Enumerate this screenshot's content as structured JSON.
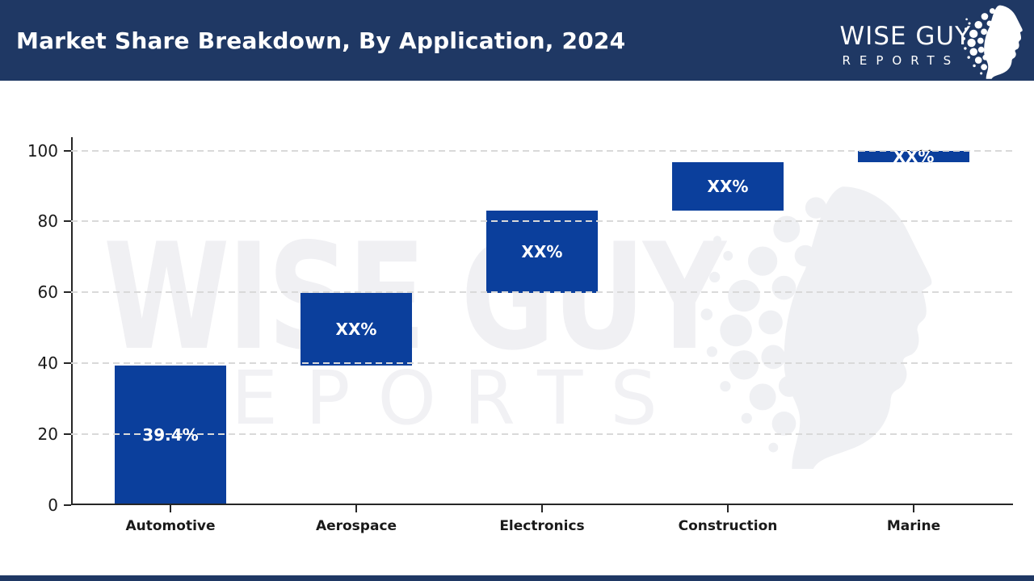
{
  "header": {
    "title": "Market Share Breakdown, By Application, 2024",
    "bg_color": "#1F3864",
    "logo": {
      "line1": "WISE GUY",
      "line2": "REPORTS"
    }
  },
  "watermark": {
    "line1": "WISE GUY",
    "line2": "REPORTS"
  },
  "footer": {
    "bg_color": "#1F3864"
  },
  "chart_data": {
    "type": "bar",
    "subtype": "waterfall",
    "title": "Market Share Breakdown, By Application, 2024",
    "categories": [
      "Automotive",
      "Aerospace",
      "Electronics",
      "Construction",
      "Marine"
    ],
    "segments": [
      {
        "category": "Automotive",
        "start": 0,
        "end": 39.4,
        "label": "39.4%"
      },
      {
        "category": "Aerospace",
        "start": 39.4,
        "end": 59.8,
        "label": "XX%"
      },
      {
        "category": "Electronics",
        "start": 59.8,
        "end": 83.1,
        "label": "XX%"
      },
      {
        "category": "Construction",
        "start": 83.1,
        "end": 96.8,
        "label": "XX%"
      },
      {
        "category": "Marine",
        "start": 96.8,
        "end": 100,
        "label": "XX%"
      }
    ],
    "ylim": [
      0,
      100
    ],
    "yticks": [
      0,
      20,
      40,
      60,
      80,
      100
    ],
    "grid": "horizontal-dashed",
    "legend": "none",
    "colors": {
      "bar": "#0B3F9C",
      "bar_label": "#ffffff",
      "axis": "#262626",
      "grid": "#d9d9d9",
      "tick_label": "#1a1a1a"
    }
  }
}
